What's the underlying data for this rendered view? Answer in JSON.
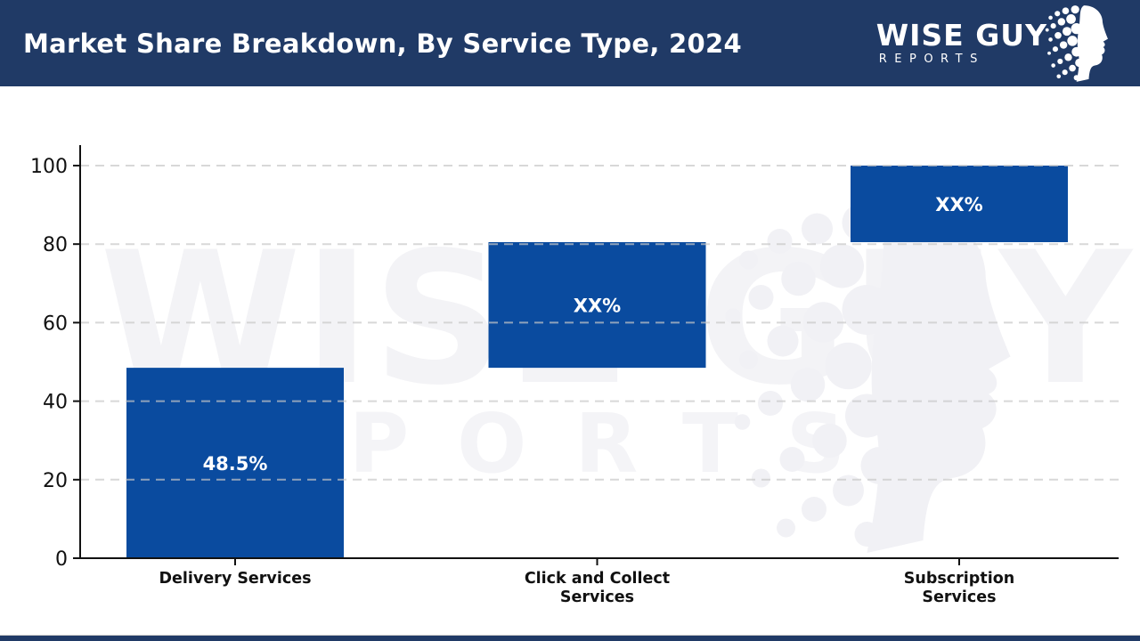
{
  "header": {
    "title": "Market Share Breakdown, By Service Type, 2024",
    "logo": {
      "line1": "WISE GUY",
      "line2": "REPORTS"
    }
  },
  "watermark": {
    "line1": "WISE GUY",
    "line2": "REPORTS"
  },
  "colors": {
    "header_bg": "#203a66",
    "bar": "#0a4b9f",
    "axis": "#111111",
    "gridline": "rgba(200,200,200,0.7)",
    "bar_label": "#ffffff",
    "watermark": "#f3f3f6"
  },
  "chart_data": {
    "type": "bar",
    "subtype": "waterfall",
    "title": "Market Share Breakdown, By Service Type, 2024",
    "categories": [
      "Delivery Services",
      "Click and Collect Services",
      "Subscription Services"
    ],
    "category_lines": [
      [
        "Delivery Services"
      ],
      [
        "Click and Collect",
        "Services"
      ],
      [
        "Subscription",
        "Services"
      ]
    ],
    "bars": [
      {
        "category": "Delivery Services",
        "start": 0,
        "end": 48.5,
        "label": "48.5%"
      },
      {
        "category": "Click and Collect Services",
        "start": 48.5,
        "end": 80.5,
        "label": "XX%"
      },
      {
        "category": "Subscription Services",
        "start": 80.5,
        "end": 100,
        "label": "XX%"
      }
    ],
    "xlabel": "",
    "ylabel": "",
    "ylim": [
      0,
      100
    ],
    "yticks": [
      0,
      20,
      40,
      60,
      80,
      100
    ],
    "grid": "horizontal dashed",
    "legend": "none"
  }
}
